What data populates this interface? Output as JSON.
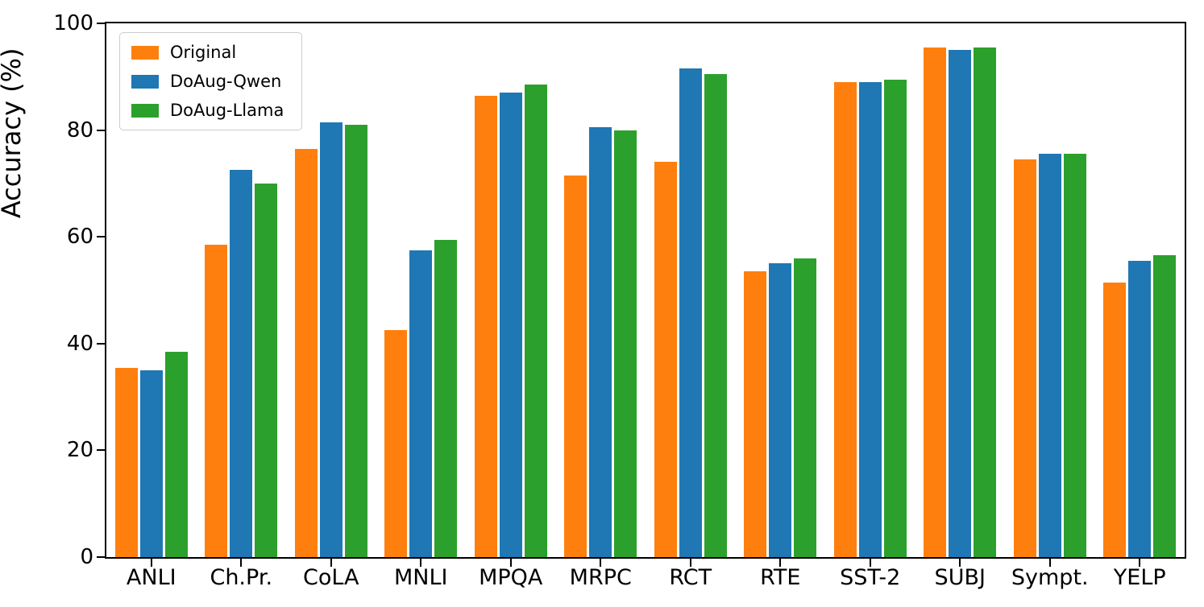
{
  "chart_data": {
    "type": "bar",
    "title": "",
    "xlabel": "",
    "ylabel": "Accuracy (%)",
    "ylim": [
      0,
      100
    ],
    "yticks": [
      0,
      20,
      40,
      60,
      80,
      100
    ],
    "grid": false,
    "legend_position": "upper left",
    "categories": [
      "ANLI",
      "Ch.Pr.",
      "CoLA",
      "MNLI",
      "MPQA",
      "MRPC",
      "RCT",
      "RTE",
      "SST-2",
      "SUBJ",
      "Sympt.",
      "YELP"
    ],
    "series": [
      {
        "name": "Original",
        "color": "#ff7f0e",
        "values": [
          35.5,
          58.5,
          76.5,
          42.5,
          86.5,
          71.5,
          74.0,
          53.5,
          89.0,
          95.5,
          74.5,
          51.5
        ]
      },
      {
        "name": "DoAug-Qwen",
        "color": "#1f77b4",
        "values": [
          35.0,
          72.5,
          81.5,
          57.5,
          87.0,
          80.5,
          91.5,
          55.0,
          89.0,
          95.0,
          75.5,
          55.5
        ]
      },
      {
        "name": "DoAug-Llama",
        "color": "#2ca02c",
        "values": [
          38.5,
          70.0,
          81.0,
          59.5,
          88.5,
          80.0,
          90.5,
          56.0,
          89.5,
          95.5,
          75.5,
          56.5
        ]
      }
    ]
  }
}
